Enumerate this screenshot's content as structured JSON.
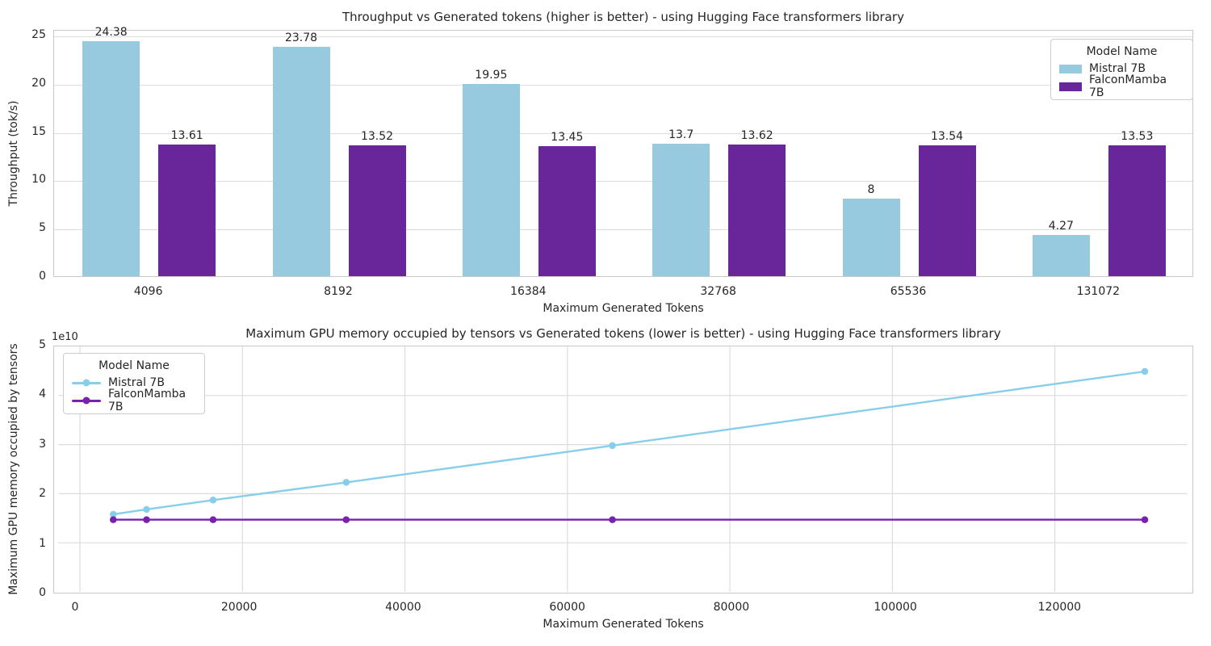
{
  "figure": {
    "background": "#ffffff",
    "text_color": "#262626",
    "grid_color": "#dcdcdc",
    "spine_color": "#c9c9c9"
  },
  "chart_data": [
    {
      "type": "bar",
      "title": "Throughput vs Generated tokens (higher is better) - using Hugging Face transformers library",
      "xlabel": "Maximum Generated Tokens",
      "ylabel": "Throughput (tok/s)",
      "categories": [
        "4096",
        "8192",
        "16384",
        "32768",
        "65536",
        "131072"
      ],
      "series": [
        {
          "name": "Mistral 7B",
          "color": "#97cade",
          "values": [
            24.38,
            23.78,
            19.95,
            13.7,
            8,
            4.27
          ],
          "labels": [
            "24.38",
            "23.78",
            "19.95",
            "13.7",
            "8",
            "4.27"
          ]
        },
        {
          "name": "FalconMamba 7B",
          "color": "#68269a",
          "values": [
            13.61,
            13.52,
            13.45,
            13.62,
            13.54,
            13.53
          ],
          "labels": [
            "13.61",
            "13.52",
            "13.45",
            "13.62",
            "13.54",
            "13.53"
          ]
        }
      ],
      "ylim": [
        0,
        25.6
      ],
      "yticks": [
        0,
        5,
        10,
        15,
        20,
        25
      ],
      "grid": "horizontal",
      "legend": {
        "title": "Model Name",
        "position": "top-right"
      }
    },
    {
      "type": "line",
      "title": "Maximum GPU memory occupied by tensors vs Generated tokens (lower is better) - using Hugging Face transformers library",
      "xlabel": "Maximum Generated Tokens",
      "ylabel": "Maximum GPU memory occupied by tensors",
      "y_offset_text": "1e10",
      "x": [
        4096,
        8192,
        16384,
        32768,
        65536,
        131072
      ],
      "series": [
        {
          "name": "Mistral 7B",
          "color": "#87ceeb",
          "values": [
            15800000000,
            16800000000,
            18700000000,
            22300000000,
            29800000000,
            44900000000
          ]
        },
        {
          "name": "FalconMamba 7B",
          "color": "#7a20b0",
          "values": [
            14700000000,
            14700000000,
            14700000000,
            14700000000,
            14700000000,
            14700000000
          ]
        }
      ],
      "xlim": [
        -2650,
        136300
      ],
      "ylim": [
        0,
        50000000000
      ],
      "xticks": [
        0,
        20000,
        40000,
        60000,
        80000,
        100000,
        120000
      ],
      "xtick_labels": [
        "0",
        "20000",
        "40000",
        "60000",
        "80000",
        "100000",
        "120000"
      ],
      "yticks": [
        0,
        1,
        2,
        3,
        4,
        5
      ],
      "ytick_labels": [
        "0",
        "1",
        "2",
        "3",
        "4",
        "5"
      ],
      "grid": "both",
      "legend": {
        "title": "Model Name",
        "position": "top-left"
      }
    }
  ]
}
